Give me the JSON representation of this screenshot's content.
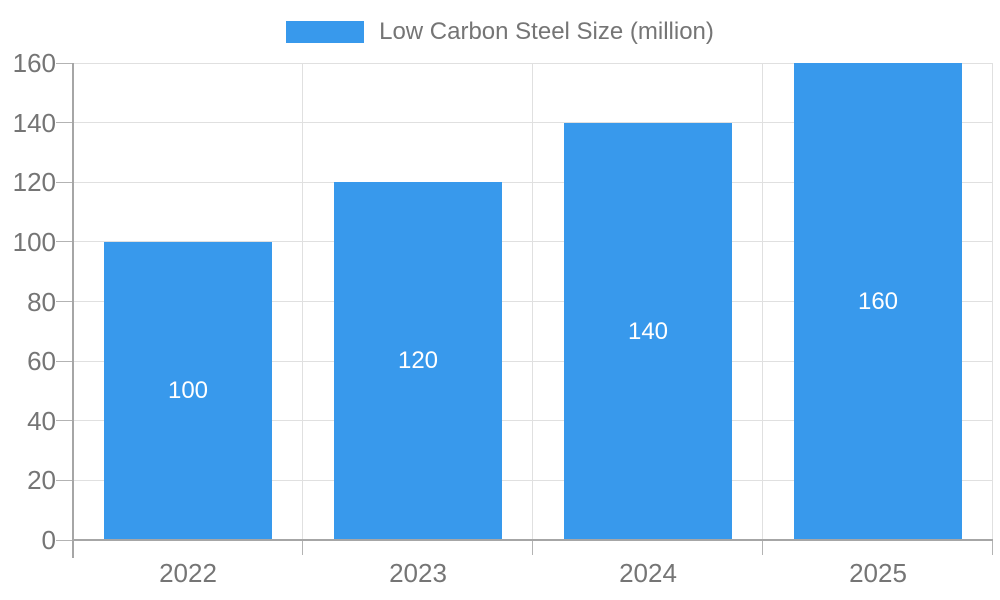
{
  "chart_data": {
    "type": "bar",
    "title": "",
    "legend": "Low Carbon Steel Size (million)",
    "legend_position": "top-center",
    "categories": [
      "2022",
      "2023",
      "2024",
      "2025"
    ],
    "series": [
      {
        "name": "Low Carbon Steel Size (million)",
        "values": [
          100,
          120,
          140,
          160
        ]
      }
    ],
    "data_labels": [
      "100",
      "120",
      "140",
      "160"
    ],
    "xlabel": "",
    "ylabel": "",
    "ylim": [
      0,
      160
    ],
    "yticks": [
      0,
      20,
      40,
      60,
      80,
      100,
      120,
      140,
      160
    ],
    "grid": true,
    "colors": {
      "bar": "#3899ec",
      "axis_line": "#a6a6a6",
      "tick": "#b3b3b3",
      "gridline": "#e0e0e0",
      "axis_text": "#757575",
      "bar_label_text": "#ffffff",
      "background": "#ffffff"
    }
  }
}
